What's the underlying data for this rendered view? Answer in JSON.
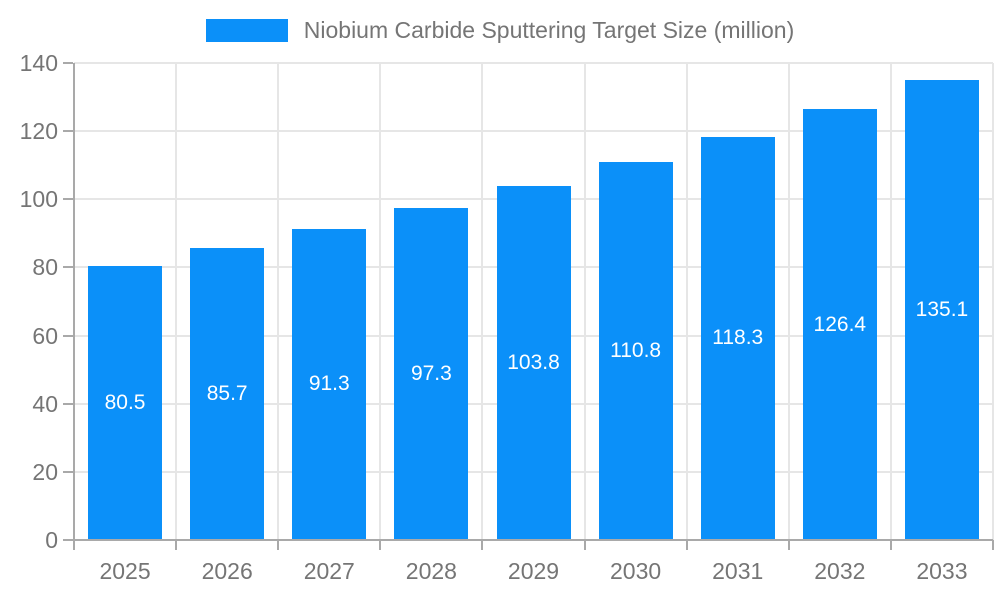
{
  "legend": {
    "label": "Niobium Carbide Sputtering Target Size (million)"
  },
  "chart_data": {
    "type": "bar",
    "title": "Niobium Carbide Sputtering Target Size (million)",
    "categories": [
      "2025",
      "2026",
      "2027",
      "2028",
      "2029",
      "2030",
      "2031",
      "2032",
      "2033"
    ],
    "series": [
      {
        "name": "Niobium Carbide Sputtering Target Size (million)",
        "values": [
          80.5,
          85.7,
          91.3,
          97.3,
          103.8,
          110.8,
          118.3,
          126.4,
          135.1
        ]
      }
    ],
    "value_labels": [
      "80.5",
      "85.7",
      "91.3",
      "97.3",
      "103.8",
      "110.8",
      "118.3",
      "126.4",
      "135.1"
    ],
    "xlabel": "",
    "ylabel": "",
    "ylim": [
      0,
      140
    ],
    "yticks": [
      0,
      20,
      40,
      60,
      80,
      100,
      120,
      140
    ],
    "grid": true,
    "legend_position": "top",
    "value_label_position": "inside-center"
  },
  "colors": {
    "bar": "#0b90f9",
    "grid": "#e6e6e6",
    "axis": "#a9a9a9",
    "tick_text": "#757575",
    "value_text": "#ffffff",
    "background": "#ffffff"
  }
}
